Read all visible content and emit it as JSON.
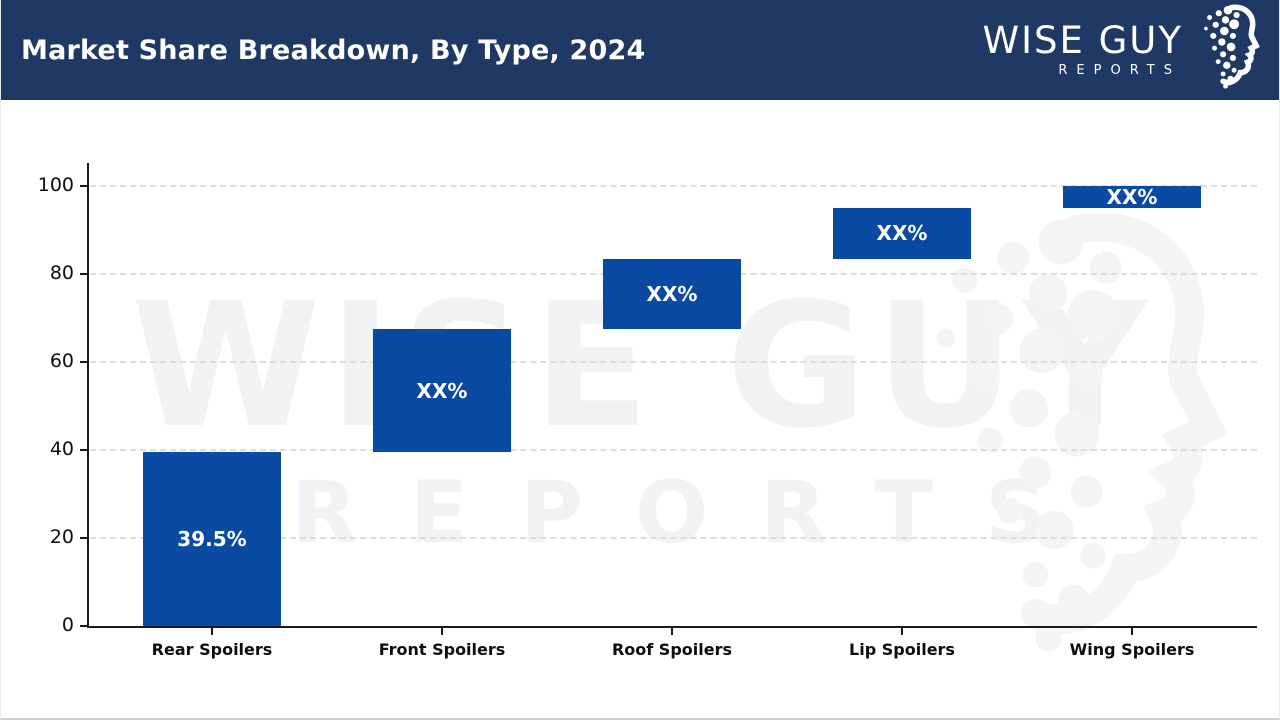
{
  "header": {
    "title": "Market Share Breakdown, By Type, 2024",
    "logo": {
      "line1": "WISE GUY",
      "line2": "REPORTS"
    }
  },
  "watermark": {
    "line1": "WISE GUY",
    "line2": "REPORTS"
  },
  "colors": {
    "header_bg": "#1F3864",
    "bar_blue": "#0B4AA2",
    "grid_gray": "#DCDCDC",
    "axis_black": "#1A1A1A",
    "bar_label_text": "#FFFFFF",
    "watermark_gray": "#F2F2F2"
  },
  "chart_data": {
    "type": "bar",
    "subtype": "waterfall-floating-bars",
    "title": "Market Share Breakdown, By Type, 2024",
    "categories": [
      "Rear Spoilers",
      "Front Spoilers",
      "Roof Spoilers",
      "Lip Spoilers",
      "Wing Spoilers"
    ],
    "segments": [
      {
        "category": "Rear Spoilers",
        "start": 0,
        "end": 39.5,
        "value": 39.5,
        "label": "39.5%"
      },
      {
        "category": "Front Spoilers",
        "start": 39.5,
        "end": 67.5,
        "value": 28,
        "label": "XX%"
      },
      {
        "category": "Roof Spoilers",
        "start": 67.5,
        "end": 83.5,
        "value": 16,
        "label": "XX%"
      },
      {
        "category": "Lip Spoilers",
        "start": 83.5,
        "end": 95,
        "value": 11.5,
        "label": "XX%"
      },
      {
        "category": "Wing Spoilers",
        "start": 95,
        "end": 100,
        "value": 5,
        "label": "XX%"
      }
    ],
    "yticks": [
      0,
      20,
      40,
      60,
      80,
      100
    ],
    "ylim": [
      0,
      105
    ],
    "xlabel": "",
    "ylabel": "",
    "grid": "horizontal-dashed",
    "legend": "none"
  }
}
